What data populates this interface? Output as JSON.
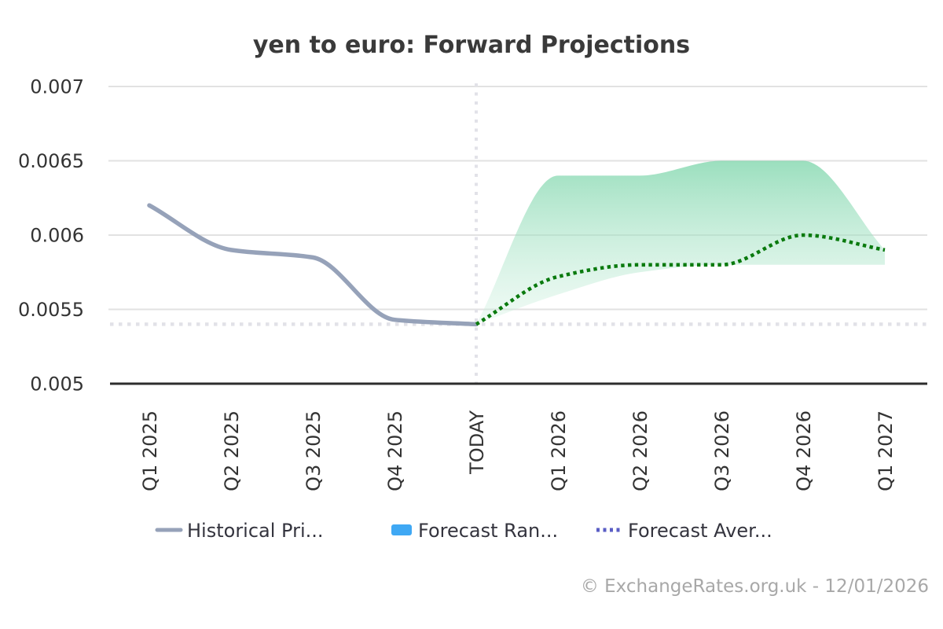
{
  "title": "yen to euro: Forward Projections",
  "watermark": "© ExchangeRates.org.uk - 12/01/2026",
  "legend": {
    "items": [
      {
        "label": "Historical Pri...",
        "swatch": "line"
      },
      {
        "label": "Forecast Ran...",
        "swatch": "rect"
      },
      {
        "label": "Forecast Aver...",
        "swatch": "dotted-line"
      }
    ]
  },
  "chart_data": {
    "type": "line",
    "title": "yen to euro: Forward Projections",
    "categories": [
      "Q1 2025",
      "Q2 2025",
      "Q3 2025",
      "Q4 2025",
      "TODAY",
      "Q1 2026",
      "Q2 2026",
      "Q3 2026",
      "Q4 2026",
      "Q1 2027"
    ],
    "series": [
      {
        "name": "Historical Price",
        "legend_label": "Historical Pri...",
        "type": "line",
        "color": "#96a2b9",
        "values": [
          0.0062,
          0.0059,
          0.00585,
          0.00543,
          0.0054,
          null,
          null,
          null,
          null,
          null
        ]
      },
      {
        "name": "Forecast Range",
        "legend_label": "Forecast Ran...",
        "type": "band",
        "legend_color": "#3fa8f4",
        "fill_top": "rgba(121,212,168,0.75)",
        "fill_bottom": "rgba(205,240,222,0.30)",
        "upper": [
          null,
          null,
          null,
          null,
          0.0054,
          0.0064,
          0.0064,
          0.0065,
          0.0065,
          0.0059
        ],
        "lower": [
          null,
          null,
          null,
          null,
          0.0054,
          0.0056,
          0.00575,
          0.0058,
          0.0058,
          0.0058
        ]
      },
      {
        "name": "Forecast Average",
        "legend_label": "Forecast Aver...",
        "type": "dotted-line",
        "color": "#0a7a0e",
        "legend_color": "#5a5ec5",
        "values": [
          null,
          null,
          null,
          null,
          0.0054,
          0.00572,
          0.0058,
          0.0058,
          0.006,
          0.0059
        ]
      }
    ],
    "ylim": [
      0.005,
      0.007
    ],
    "y_ticks": [
      {
        "value": 0.005,
        "label": "0.005"
      },
      {
        "value": 0.0055,
        "label": "0.0055"
      },
      {
        "value": 0.006,
        "label": "0.006"
      },
      {
        "value": 0.0065,
        "label": "0.0065"
      },
      {
        "value": 0.007,
        "label": "0.007"
      }
    ],
    "reference_lines": {
      "horizontal_dotted_value": 0.0054,
      "vertical_dashed_category": "TODAY"
    },
    "grid": true,
    "legend_position": "bottom",
    "colors": {
      "gridline": "#e2e2e2",
      "axis_line": "#2d2d2d",
      "reference_line": "#e2e2e8"
    }
  }
}
